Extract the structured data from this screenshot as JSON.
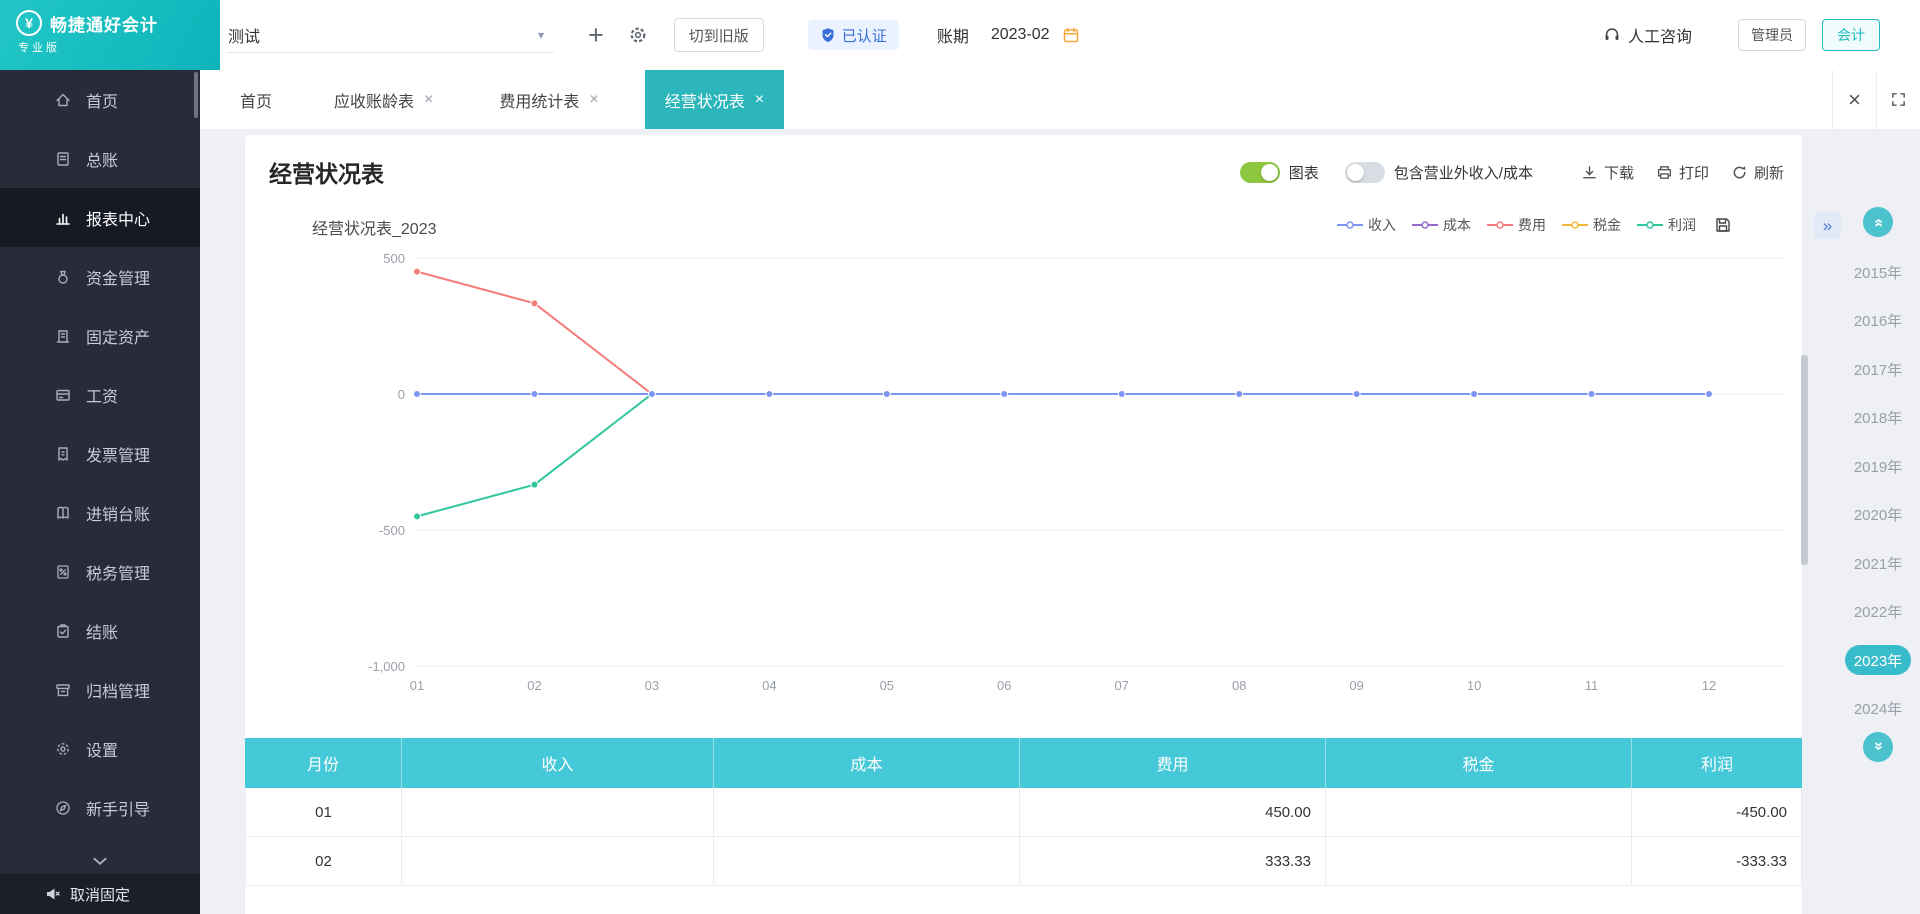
{
  "colors": {
    "brand": "#1fbdc0",
    "sidebar-bg": "#282c39",
    "sidebar-active-bg": "#171a24",
    "tab-active-bg": "#2cb6bc",
    "table-header-bg": "#45c8d7",
    "toggle-on": "#8dc63f",
    "year-selected-bg": "#38bccb",
    "year-btn-bg": "#4cc2cf",
    "certified-blue": "#3a6fd8"
  },
  "icons": {
    "plus": "+",
    "close": "×",
    "caret": "▾",
    "double_chevron": "«",
    "expand_panel": "»",
    "yuan": "¥"
  },
  "app": {
    "logo_title": "畅捷通好会计",
    "logo_subtitle": "专业版"
  },
  "sidebar": {
    "items": [
      {
        "label": "首页"
      },
      {
        "label": "总账"
      },
      {
        "label": "报表中心"
      },
      {
        "label": "资金管理"
      },
      {
        "label": "固定资产"
      },
      {
        "label": "工资"
      },
      {
        "label": "发票管理"
      },
      {
        "label": "进销台账"
      },
      {
        "label": "税务管理"
      },
      {
        "label": "结账"
      },
      {
        "label": "归档管理"
      },
      {
        "label": "设置"
      },
      {
        "label": "新手引导"
      }
    ],
    "unpin_label": "取消固定"
  },
  "toolbar": {
    "company_selector": "测试",
    "switch_old_label": "切到旧版",
    "certified_label": "已认证",
    "period_label": "账期",
    "period_value": "2023-02",
    "consult_label": "人工咨询",
    "admin_label": "管理员",
    "accountant_label": "会计"
  },
  "tabs": [
    {
      "label": "首页",
      "closable": false,
      "active": false
    },
    {
      "label": "应收账龄表",
      "closable": true,
      "active": false
    },
    {
      "label": "费用统计表",
      "closable": true,
      "active": false
    },
    {
      "label": "经营状况表",
      "closable": true,
      "active": true
    }
  ],
  "page": {
    "title": "经营状况表",
    "chart_toggle_label": "图表",
    "chart_toggle_on": true,
    "include_toggle_label": "包含营业外收入/成本",
    "include_toggle_on": false,
    "download_label": "下载",
    "print_label": "打印",
    "refresh_label": "刷新"
  },
  "chart_data": {
    "type": "line",
    "title": "经营状况表_2023",
    "x": [
      "01",
      "02",
      "03",
      "04",
      "05",
      "06",
      "07",
      "08",
      "09",
      "10",
      "11",
      "12"
    ],
    "ylim": [
      -1000,
      500
    ],
    "yticks": [
      500,
      0,
      -500,
      -1000
    ],
    "ytick_labels": [
      "500",
      "0",
      "-500",
      "-1,000"
    ],
    "grid": true,
    "legend_position": "top-right",
    "series": [
      {
        "name": "收入",
        "color": "#7b96f2",
        "values": [
          0,
          0,
          0,
          0,
          0,
          0,
          0,
          0,
          0,
          0,
          0,
          0
        ]
      },
      {
        "name": "成本",
        "color": "#9468cd",
        "values": [
          0,
          0,
          0,
          0,
          0,
          0,
          0,
          0,
          0,
          0,
          0,
          0
        ]
      },
      {
        "name": "费用",
        "color": "#f47c79",
        "values": [
          450,
          333.33,
          0,
          0,
          0,
          0,
          0,
          0,
          0,
          0,
          0,
          0
        ]
      },
      {
        "name": "税金",
        "color": "#f3b73c",
        "values": [
          0,
          0,
          0,
          0,
          0,
          0,
          0,
          0,
          0,
          0,
          0,
          0
        ]
      },
      {
        "name": "利润",
        "color": "#30c79f",
        "values": [
          -450,
          -333.33,
          0,
          0,
          0,
          0,
          0,
          0,
          0,
          0,
          0,
          0
        ]
      }
    ]
  },
  "table": {
    "headers": [
      "月份",
      "收入",
      "成本",
      "费用",
      "税金",
      "利润"
    ],
    "rows": [
      [
        "01",
        "",
        "",
        "450.00",
        "",
        "-450.00"
      ],
      [
        "02",
        "",
        "",
        "333.33",
        "",
        "-333.33"
      ]
    ]
  },
  "year_panel": {
    "years": [
      "2015年",
      "2016年",
      "2017年",
      "2018年",
      "2019年",
      "2020年",
      "2021年",
      "2022年",
      "2023年",
      "2024年"
    ],
    "selected": "2023年"
  }
}
